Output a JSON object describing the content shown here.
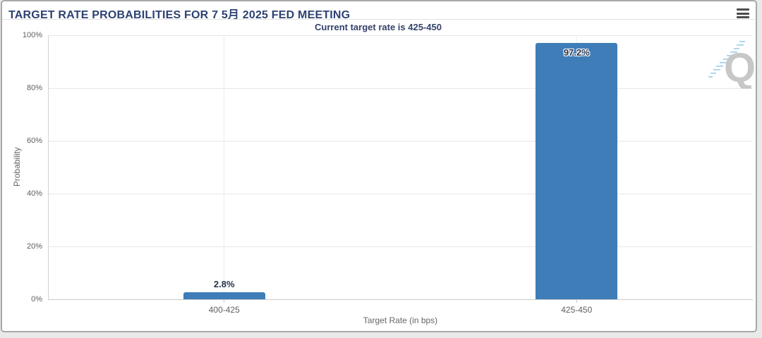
{
  "header": {
    "menu_icon": "hamburger-menu-icon"
  },
  "chart_data": {
    "type": "bar",
    "title": "TARGET RATE PROBABILITIES FOR 7 5月 2025 FED MEETING",
    "subtitle": "Current target rate is 425-450",
    "categories": [
      "400-425",
      "425-450"
    ],
    "values": [
      2.8,
      97.2
    ],
    "value_labels": [
      "2.8%",
      "97.2%"
    ],
    "xlabel": "Target Rate (in bps)",
    "ylabel": "Probability",
    "ylim": [
      0,
      100
    ],
    "yticks": [
      0,
      20,
      40,
      60,
      80,
      100
    ],
    "ytick_labels": [
      "0%",
      "20%",
      "40%",
      "60%",
      "80%",
      "100%"
    ],
    "grid": true,
    "legend": "none",
    "bar_color": "#3e7db8",
    "watermark_letter": "Q"
  },
  "colors": {
    "title_text": "#2d4272",
    "subtitle_text": "#33426b",
    "axis_text": "#606060",
    "bar": "#3e7db8",
    "watermark_gray": "#c7c7c7",
    "watermark_blue": "#aed7ee"
  }
}
